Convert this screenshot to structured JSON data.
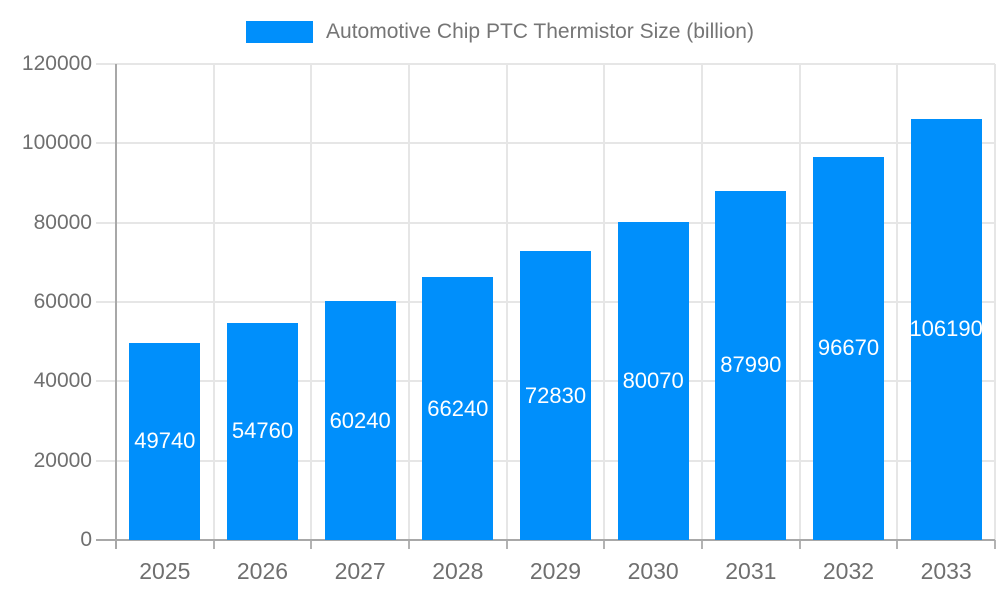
{
  "chart_data": {
    "type": "bar",
    "title": "Automotive Chip PTC Thermistor Size (billion)",
    "categories": [
      "2025",
      "2026",
      "2027",
      "2028",
      "2029",
      "2030",
      "2031",
      "2032",
      "2033"
    ],
    "values": [
      49740,
      54760,
      60240,
      66240,
      72830,
      80070,
      87990,
      96670,
      106190
    ],
    "xlabel": "",
    "ylabel": "",
    "ylim": [
      0,
      120000
    ],
    "yticks": [
      0,
      20000,
      40000,
      60000,
      80000,
      100000,
      120000
    ],
    "grid": true,
    "legend_position": "top",
    "colors": {
      "bar": "#008FFB",
      "value_label": "#ffffff",
      "gridline": "#e6e6e6",
      "axis_line": "#a8a8a8",
      "axis_tick": "#b3b3b3",
      "axis_label": "#6f6f6f",
      "legend_text": "#757575"
    },
    "legend": {
      "label": "Automotive Chip PTC Thermistor Size (billion)",
      "swatch_color": "#008FFB"
    }
  }
}
